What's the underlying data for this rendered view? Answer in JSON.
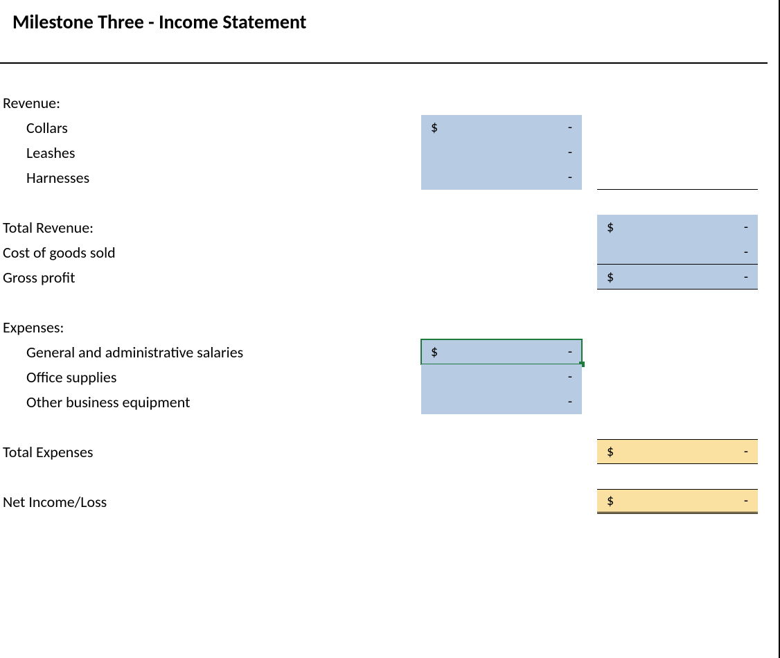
{
  "title": "Milestone Three - Income Statement",
  "colors": {
    "fill_blue": "#b7cce2",
    "fill_gold": "#fbe1a1",
    "selection_border": "#1f7a3e",
    "page_border": "#000000",
    "background": "#ffffff",
    "text": "#000000"
  },
  "fonts": {
    "family": "Calibri",
    "title_size_pt": 20,
    "title_weight": "bold",
    "body_size_pt": 16
  },
  "revenue": {
    "header": "Revenue:",
    "items": [
      {
        "label": "Collars",
        "symbol": "$",
        "value": "-"
      },
      {
        "label": "Leashes",
        "symbol": "",
        "value": "-"
      },
      {
        "label": "Harnesses",
        "symbol": "",
        "value": "-"
      }
    ]
  },
  "totals": {
    "total_revenue": {
      "label": "Total Revenue:",
      "symbol": "$",
      "value": "-"
    },
    "cogs": {
      "label": "Cost of goods sold",
      "symbol": "",
      "value": "-"
    },
    "gross_profit": {
      "label": "Gross profit",
      "symbol": "$",
      "value": "-"
    }
  },
  "expenses": {
    "header": "Expenses:",
    "items": [
      {
        "label": "General and administrative salaries",
        "symbol": "$",
        "value": "-",
        "selected": true
      },
      {
        "label": "Office supplies",
        "symbol": "",
        "value": "-"
      },
      {
        "label": "Other business equipment",
        "symbol": "",
        "value": "-"
      }
    ]
  },
  "total_expenses": {
    "label": "Total Expenses",
    "symbol": "$",
    "value": "-"
  },
  "net_income": {
    "label": "Net Income/Loss",
    "symbol": "$",
    "value": "-"
  }
}
